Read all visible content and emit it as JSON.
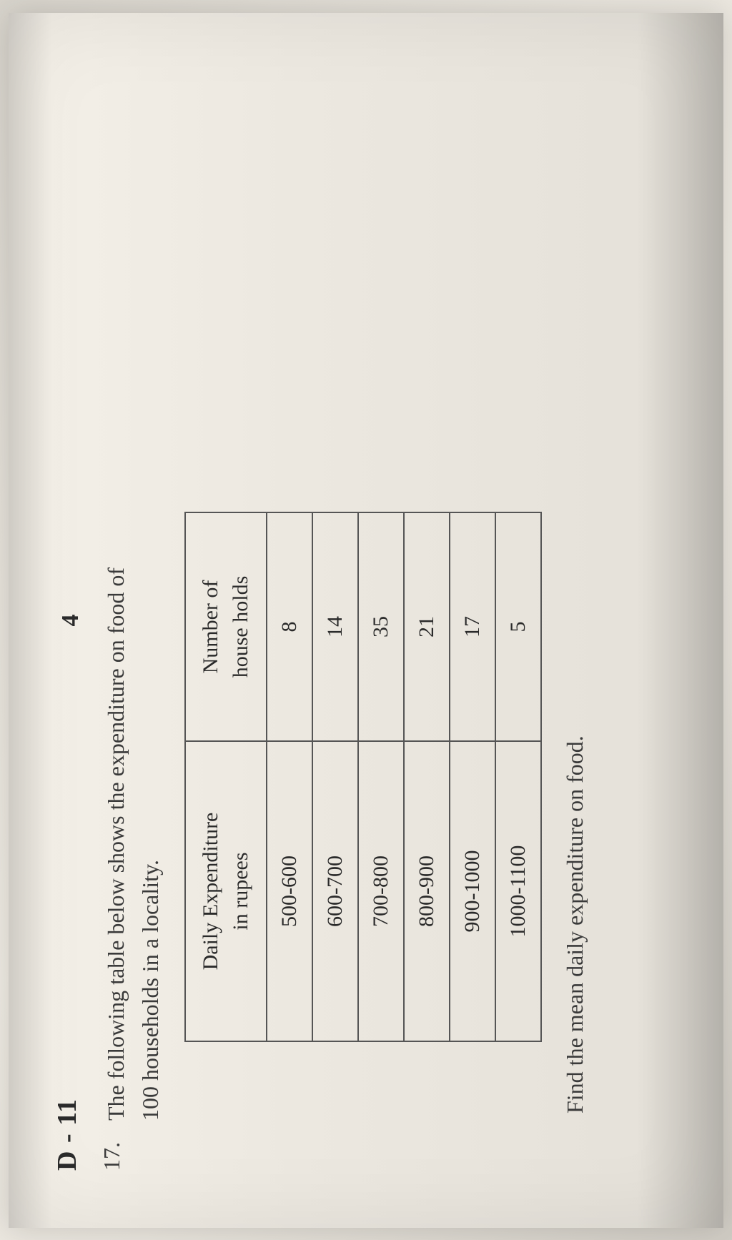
{
  "section_label": "D - 11",
  "page_number": "4",
  "question": {
    "number": "17.",
    "text_line1": "The following table below shows the expenditure on food of",
    "text_line2": "100 households in a locality."
  },
  "table": {
    "header_col1_line1": "Daily Expenditure",
    "header_col1_line2": "in rupees",
    "header_col2_line1": "Number of",
    "header_col2_line2": "house holds",
    "rows": [
      {
        "range": "500-600",
        "count": "8"
      },
      {
        "range": "600-700",
        "count": "14"
      },
      {
        "range": "700-800",
        "count": "35"
      },
      {
        "range": "800-900",
        "count": "21"
      },
      {
        "range": "900-1000",
        "count": "17"
      },
      {
        "range": "1000-1100",
        "count": "5"
      }
    ]
  },
  "instruction": "Find the mean daily expenditure on food."
}
